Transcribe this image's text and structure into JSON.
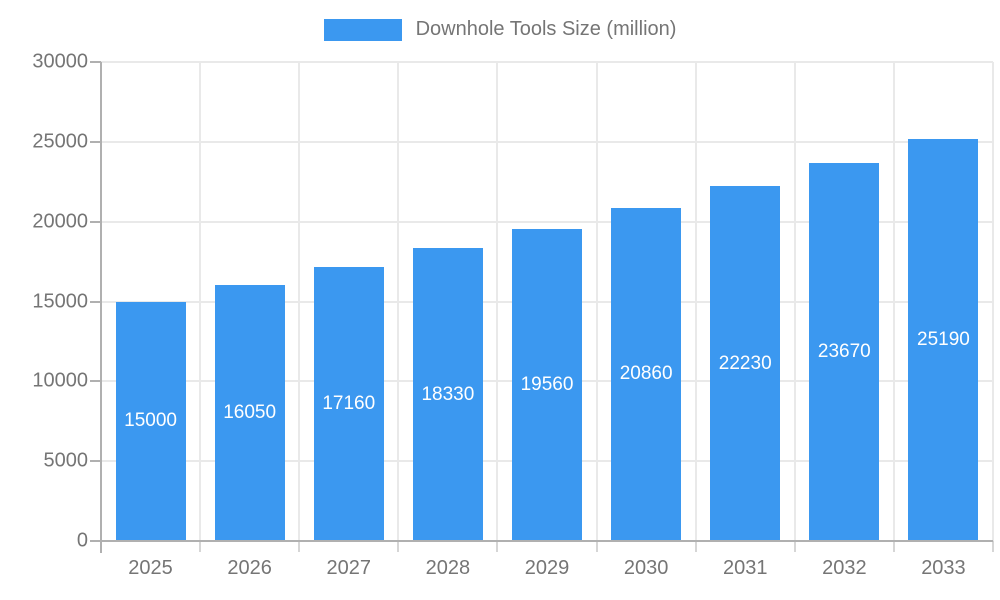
{
  "legend": {
    "label": "Downhole Tools Size (million)"
  },
  "chart_data": {
    "type": "bar",
    "title": "Downhole Tools Size (million)",
    "categories": [
      "2025",
      "2026",
      "2027",
      "2028",
      "2029",
      "2030",
      "2031",
      "2032",
      "2033"
    ],
    "values": [
      15000,
      16050,
      17160,
      18330,
      19560,
      20860,
      22230,
      23670,
      25190
    ],
    "xlabel": "",
    "ylabel": "",
    "ylim": [
      0,
      30000
    ],
    "yticks": [
      0,
      5000,
      10000,
      15000,
      20000,
      25000,
      30000
    ],
    "grid": "horizontal gridlines at y ticks, vertical gridlines at category boundaries",
    "legend_position": "top-center",
    "bar_color": "#3b98f0",
    "value_label_color": "#ffffff",
    "axis_text_color": "#757575",
    "value_labels": [
      "15000",
      "16050",
      "17160",
      "18330",
      "19560",
      "20860",
      "22230",
      "23670",
      "25190"
    ]
  }
}
